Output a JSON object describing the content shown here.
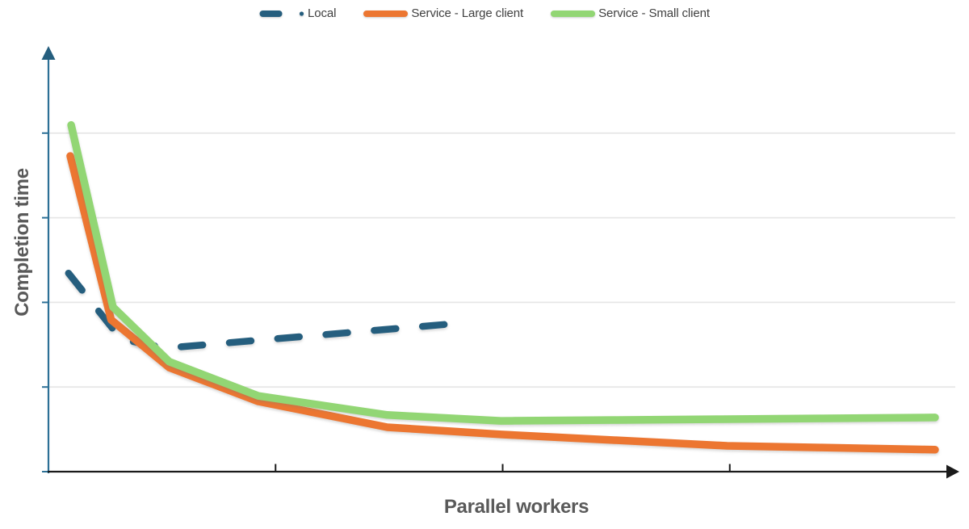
{
  "chart_data": {
    "type": "line",
    "title": "",
    "xlabel": "Parallel workers",
    "ylabel": "Completion time",
    "note": "Conceptual chart: axes have tick marks but no numeric labels. Point coordinates are percent of plot area (x = % along x-axis from origin, y = % of y-axis height above origin).",
    "x_axis": {
      "tick_labels": [],
      "ticks_percent": [
        25,
        50,
        75
      ],
      "arrow": true
    },
    "y_axis": {
      "tick_labels": [],
      "gridlines_percent": [
        20,
        40,
        60,
        80
      ],
      "ticks_percent": [
        0,
        20,
        40,
        60,
        80
      ],
      "arrow": true
    },
    "grid": "horizontal-only",
    "legend_position": "top-center",
    "series": [
      {
        "name": "Local",
        "color": "#255E7E",
        "dash": true,
        "points": [
          [
            2.2,
            46.9
          ],
          [
            8.0,
            31.3
          ],
          [
            12.9,
            29.2
          ],
          [
            44.3,
            34.9
          ]
        ]
      },
      {
        "name": "Service - Large client",
        "color": "#EC7631",
        "dash": false,
        "points": [
          [
            2.4,
            74.6
          ],
          [
            6.9,
            35.9
          ],
          [
            13.3,
            24.6
          ],
          [
            23.1,
            16.6
          ],
          [
            37.3,
            10.5
          ],
          [
            49.8,
            8.8
          ],
          [
            74.7,
            6.1
          ],
          [
            97.6,
            5.2
          ]
        ]
      },
      {
        "name": "Service - Small client",
        "color": "#92D674",
        "dash": false,
        "points": [
          [
            2.5,
            81.9
          ],
          [
            7.1,
            38.9
          ],
          [
            13.3,
            26.0
          ],
          [
            23.1,
            17.9
          ],
          [
            37.3,
            13.4
          ],
          [
            49.8,
            12.0
          ],
          [
            74.7,
            12.4
          ],
          [
            97.6,
            12.8
          ]
        ]
      }
    ]
  },
  "legend": {
    "items": [
      {
        "label": "Local",
        "swatch": "dash-dot-line",
        "color": "#255E7E"
      },
      {
        "label": "Service - Large client",
        "swatch": "solid-line",
        "color": "#EC7631"
      },
      {
        "label": "Service - Small client",
        "swatch": "solid-line",
        "color": "#92D674"
      }
    ]
  },
  "axis_labels": {
    "x": "Parallel workers",
    "y": "Completion time"
  },
  "colors": {
    "local": "#255E7E",
    "service_large": "#EC7631",
    "service_small": "#92D674",
    "gridline": "#E7E7E7",
    "x_axis": "#1A1A1A",
    "y_axis_line": "#2C7096",
    "y_axis_arrow": "#255E7E",
    "axis_label_text": "#595959",
    "legend_text": "#3F3F3F",
    "background": "#FFFFFF"
  }
}
